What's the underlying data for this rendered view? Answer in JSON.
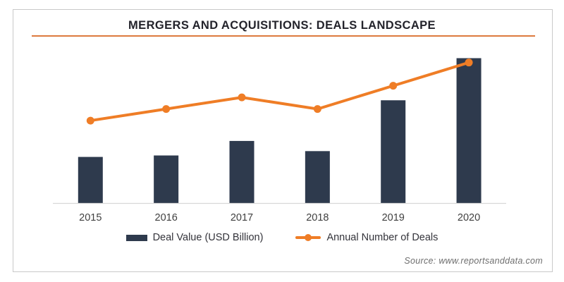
{
  "header": {
    "title": "MERGERS AND ACQUISITIONS: DEALS LANDSCAPE"
  },
  "chart_data": {
    "type": "bar",
    "subtype": "combo-bar-line",
    "title": "MERGERS AND ACQUISITIONS: DEALS LANDSCAPE",
    "categories": [
      "2015",
      "2016",
      "2017",
      "2018",
      "2019",
      "2020"
    ],
    "series": [
      {
        "name": "Deal Value (USD Billion)",
        "type": "bar",
        "color": "#2e3a4d",
        "values": [
          32,
          33,
          43,
          36,
          71,
          100
        ]
      },
      {
        "name": "Annual Number of Deals",
        "type": "line",
        "color": "#ef7d26",
        "values": [
          57,
          65,
          73,
          65,
          81,
          97
        ]
      }
    ],
    "xlabel": "",
    "ylabel": "",
    "ylim": [
      0,
      100
    ],
    "grid": false,
    "y_axis_visible": false,
    "legend_position": "bottom",
    "value_note": "no numeric y-axis shown in image; values estimated on relative 0-100 scale where 100 = tallest bar (2020)"
  },
  "legend": {
    "items": [
      {
        "label": "Deal Value (USD Billion)",
        "marker": "bar-swatch",
        "color": "#2e3a4d"
      },
      {
        "label": "Annual Number of Deals",
        "marker": "line-dot-swatch",
        "color": "#ef7d26"
      }
    ]
  },
  "source": {
    "text": "Source: www.reportsanddata.com"
  },
  "colors": {
    "bar": "#2e3a4d",
    "line": "#ef7d26",
    "title_rule": "#dd7a3e",
    "frame_border": "#c9c9c9",
    "axis_line": "#d8d8d8",
    "title_text": "#23232b",
    "axis_label": "#3f3f3f",
    "source_text": "#6e6e6e"
  }
}
